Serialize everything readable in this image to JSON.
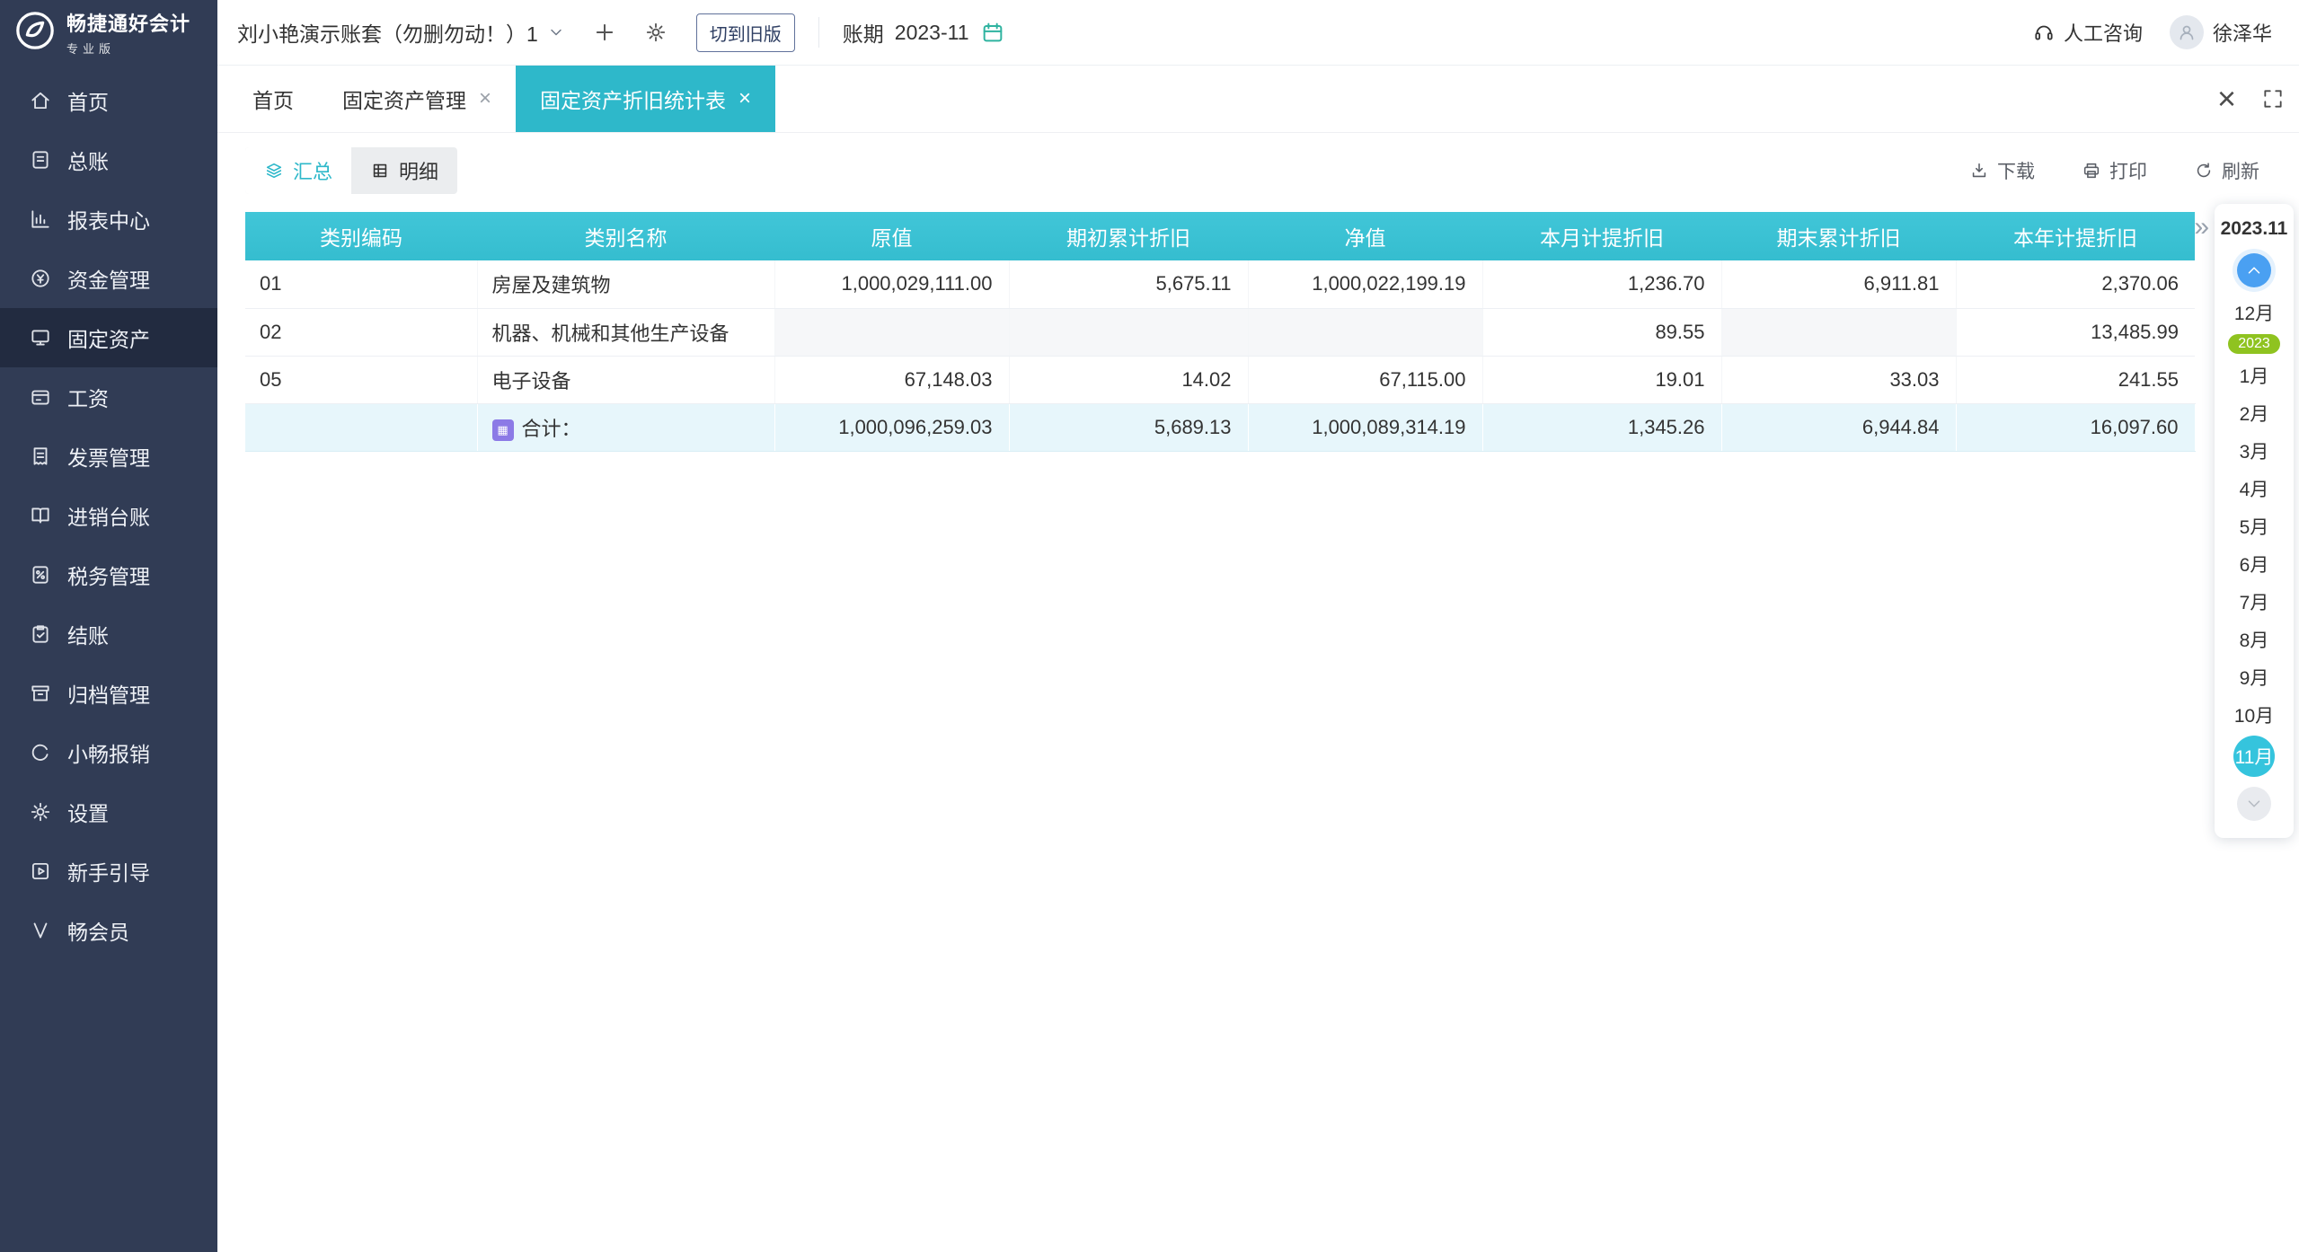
{
  "colors": {
    "sidebar_bg": "#313c55",
    "accent_cyan": "#2eb8ca",
    "header_cyan": "#35bdcf",
    "active_month": "#35c4dd",
    "year_badge": "#8fc320",
    "total_row_bg": "#e7f6fb"
  },
  "topbar": {
    "brand": "畅捷通好会计",
    "edition": "专业版",
    "account_selector": "刘小艳演示账套（勿删勿动！）1",
    "switch_old_button": "切到旧版",
    "period_label": "账期",
    "period_value": "2023-11",
    "support_label": "人工咨询",
    "username": "徐泽华"
  },
  "sidebar": {
    "items": [
      {
        "key": "home",
        "label": "首页"
      },
      {
        "key": "general-ledger",
        "label": "总账"
      },
      {
        "key": "report-center",
        "label": "报表中心"
      },
      {
        "key": "fund",
        "label": "资金管理"
      },
      {
        "key": "fixed-assets",
        "label": "固定资产",
        "active": true
      },
      {
        "key": "salary",
        "label": "工资"
      },
      {
        "key": "invoice",
        "label": "发票管理"
      },
      {
        "key": "purchase-sale",
        "label": "进销台账"
      },
      {
        "key": "tax",
        "label": "税务管理"
      },
      {
        "key": "closing",
        "label": "结账"
      },
      {
        "key": "archive",
        "label": "归档管理"
      },
      {
        "key": "reimburse",
        "label": "小畅报销"
      },
      {
        "key": "settings",
        "label": "设置"
      },
      {
        "key": "guide",
        "label": "新手引导"
      },
      {
        "key": "member",
        "label": "畅会员"
      }
    ]
  },
  "tabbar": {
    "tabs": [
      {
        "key": "home",
        "label": "首页",
        "closable": false,
        "active": false
      },
      {
        "key": "fixed-asset-management",
        "label": "固定资产管理",
        "closable": true,
        "active": false
      },
      {
        "key": "depreciation-statistics",
        "label": "固定资产折旧统计表",
        "closable": true,
        "active": true
      }
    ]
  },
  "toolbar": {
    "view_switch": [
      {
        "key": "summary",
        "label": "汇总",
        "icon": "layers",
        "active": true
      },
      {
        "key": "detail",
        "label": "明细",
        "icon": "grid",
        "active": false
      }
    ],
    "actions": [
      {
        "key": "download",
        "label": "下载",
        "icon": "download"
      },
      {
        "key": "print",
        "label": "打印",
        "icon": "print"
      },
      {
        "key": "refresh",
        "label": "刷新",
        "icon": "refresh"
      }
    ]
  },
  "table": {
    "columns": [
      "类别编码",
      "类别名称",
      "原值",
      "期初累计折旧",
      "净值",
      "本月计提折旧",
      "期末累计折旧",
      "本年计提折旧"
    ],
    "rows": [
      [
        "01",
        "房屋及建筑物",
        "1,000,029,111.00",
        "5,675.11",
        "1,000,022,199.19",
        "1,236.70",
        "6,911.81",
        "2,370.06"
      ],
      [
        "02",
        "机器、机械和其他生产设备",
        "",
        "",
        "",
        "89.55",
        "",
        "13,485.99"
      ],
      [
        "05",
        "电子设备",
        "67,148.03",
        "14.02",
        "67,115.00",
        "19.01",
        "33.03",
        "241.55"
      ]
    ],
    "total": {
      "label": "合计：",
      "values": [
        "1,000,096,259.03",
        "5,689.13",
        "1,000,089,314.19",
        "1,345.26",
        "6,944.84",
        "16,097.60"
      ]
    }
  },
  "period_panel": {
    "current": "2023.11",
    "items": [
      {
        "type": "scroll-up"
      },
      {
        "type": "month",
        "label": "12月"
      },
      {
        "type": "year",
        "label": "2023"
      },
      {
        "type": "month",
        "label": "1月"
      },
      {
        "type": "month",
        "label": "2月"
      },
      {
        "type": "month",
        "label": "3月"
      },
      {
        "type": "month",
        "label": "4月"
      },
      {
        "type": "month",
        "label": "5月"
      },
      {
        "type": "month",
        "label": "6月"
      },
      {
        "type": "month",
        "label": "7月"
      },
      {
        "type": "month",
        "label": "8月"
      },
      {
        "type": "month",
        "label": "9月"
      },
      {
        "type": "month",
        "label": "10月"
      },
      {
        "type": "month",
        "label": "11月",
        "selected": true
      },
      {
        "type": "scroll-down"
      }
    ]
  }
}
